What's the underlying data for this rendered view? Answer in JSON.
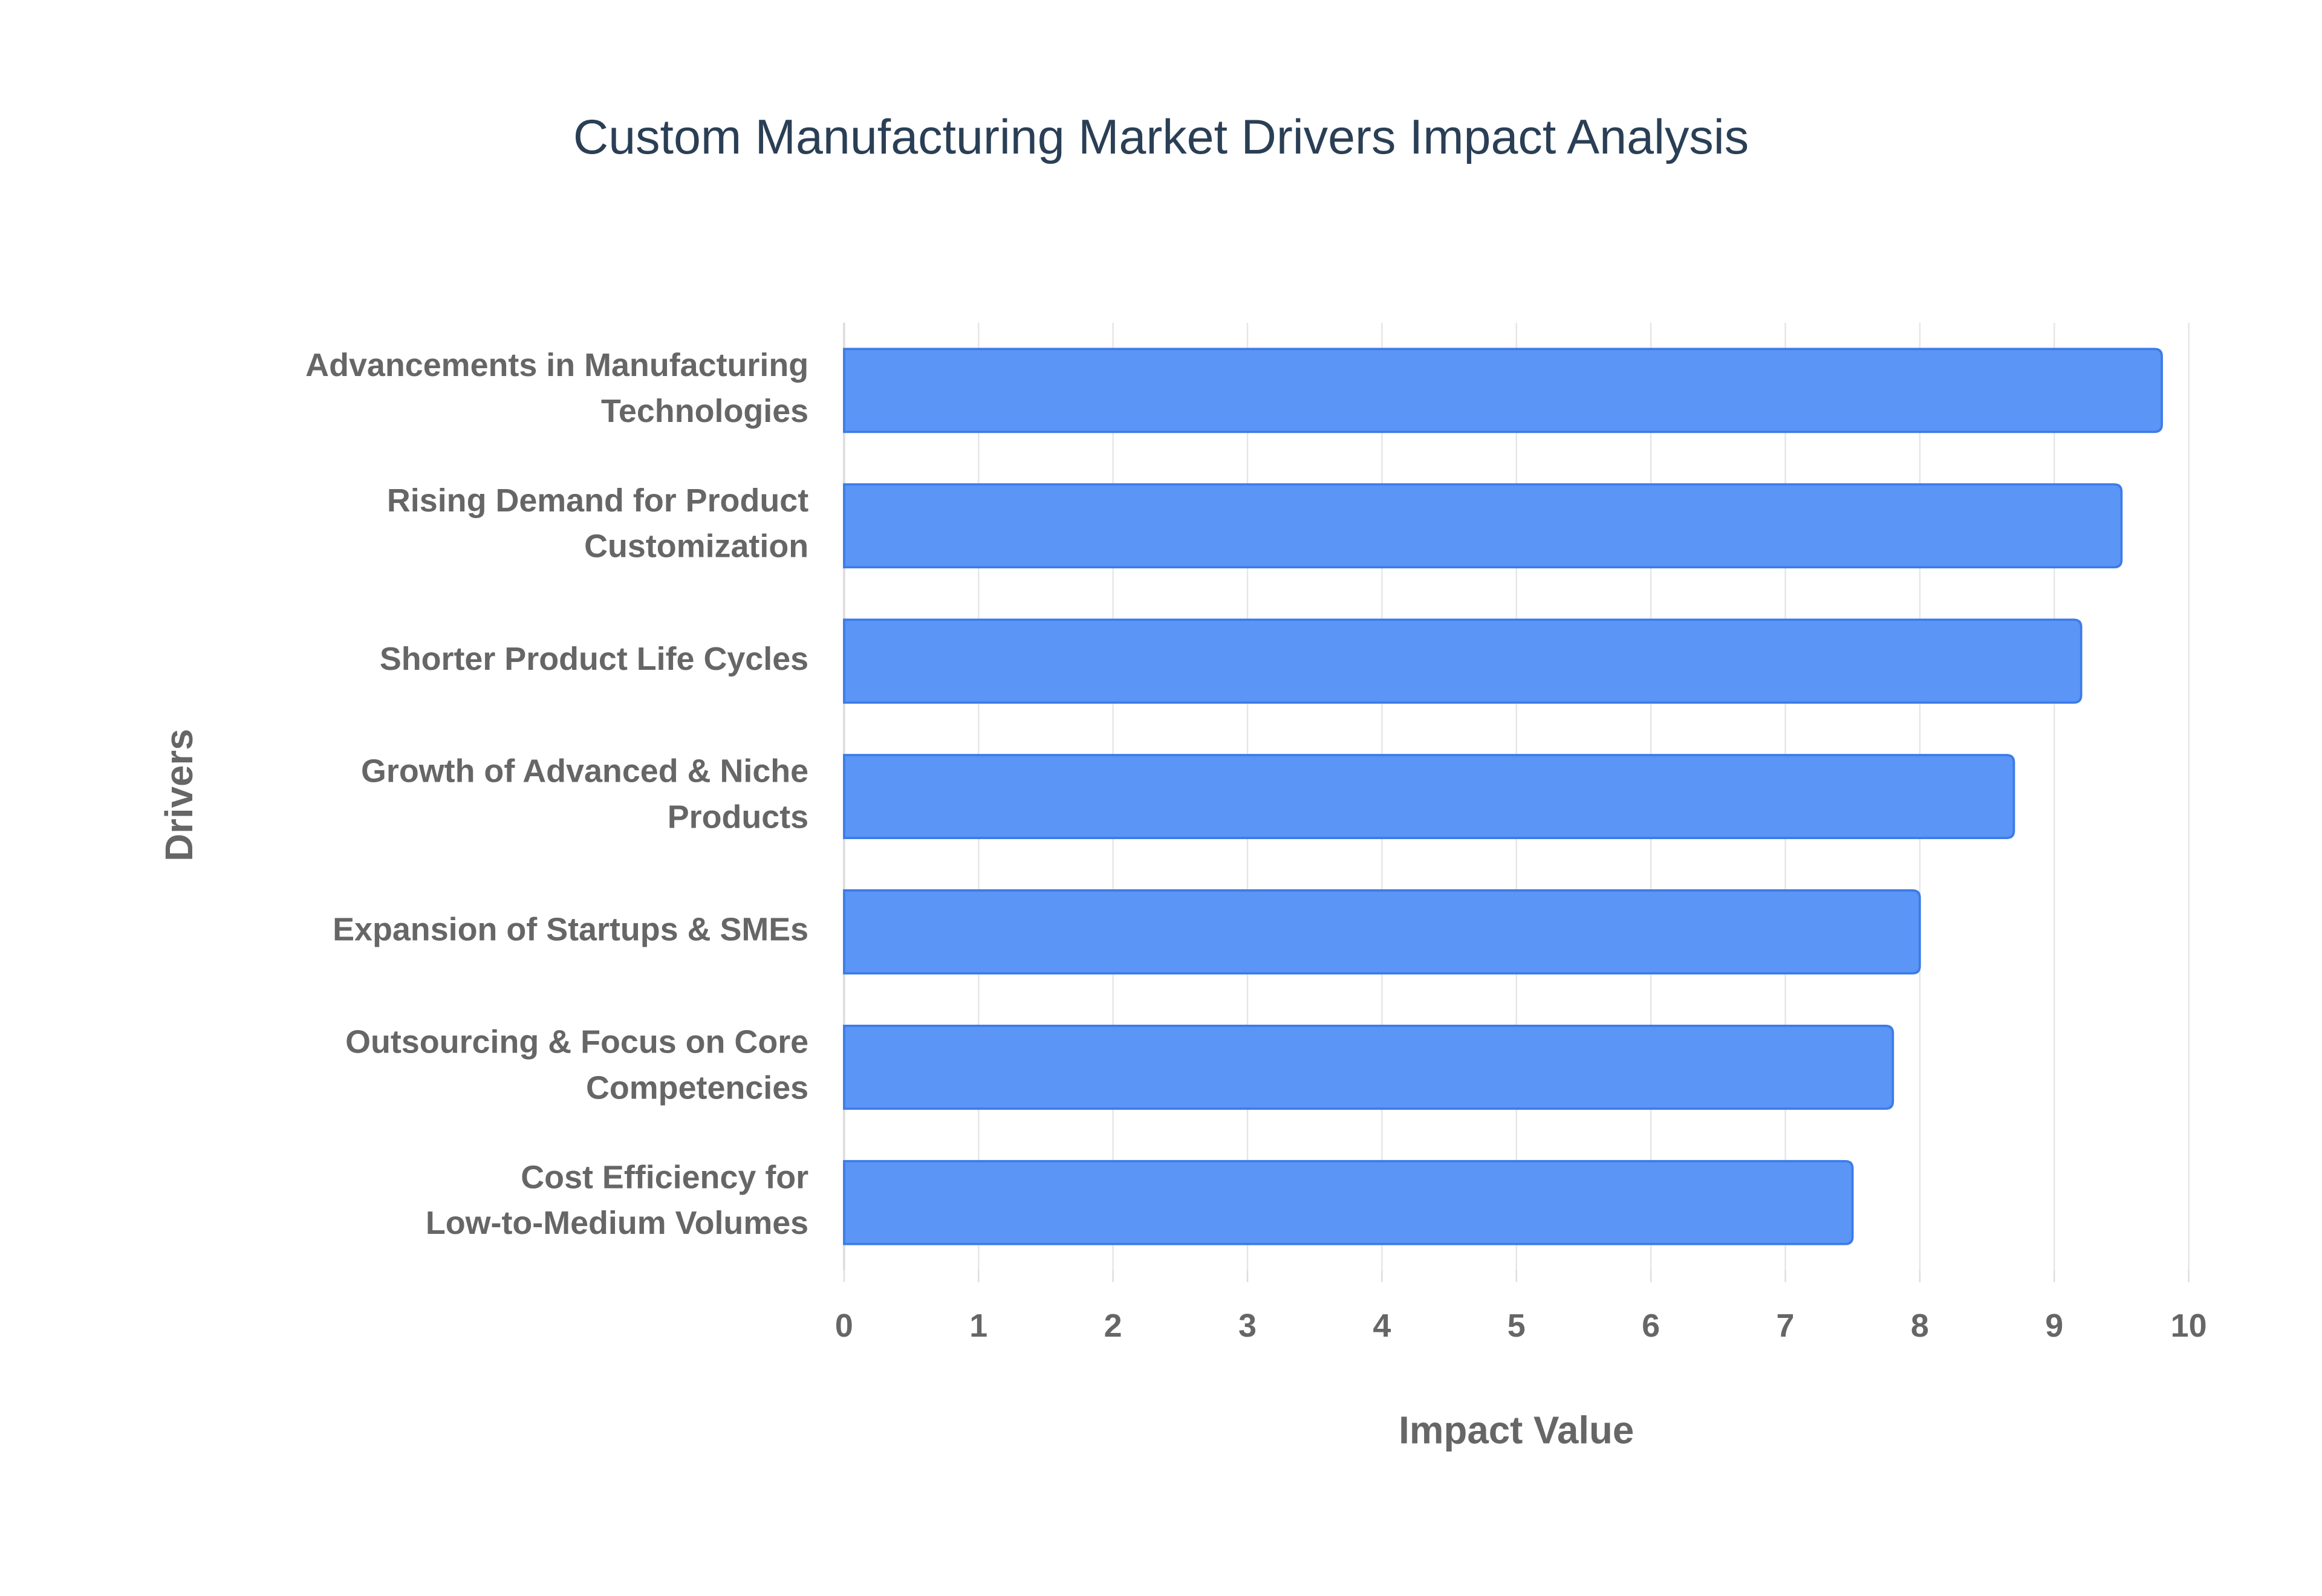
{
  "chart_data": {
    "type": "hbar",
    "title": "Custom Manufacturing Market Drivers Impact Analysis",
    "x_label": "Impact Value",
    "y_label": "Drivers",
    "categories": [
      "Advancements in Manufacturing\nTechnologies",
      "Rising Demand for Product\nCustomization",
      "Shorter Product Life Cycles",
      "Growth of Advanced & Niche\nProducts",
      "Expansion of Startups & SMEs",
      "Outsourcing & Focus on Core\nCompetencies",
      "Cost Efficiency for\nLow-to-Medium Volumes"
    ],
    "values": [
      9.8,
      9.5,
      9.2,
      8.7,
      8.0,
      7.8,
      7.5
    ],
    "color": "#5b95f5",
    "xlim": [
      0,
      10
    ],
    "xticks": [
      0,
      1,
      2,
      3,
      4,
      5,
      6,
      7,
      8,
      9,
      10
    ],
    "grid": true
  }
}
